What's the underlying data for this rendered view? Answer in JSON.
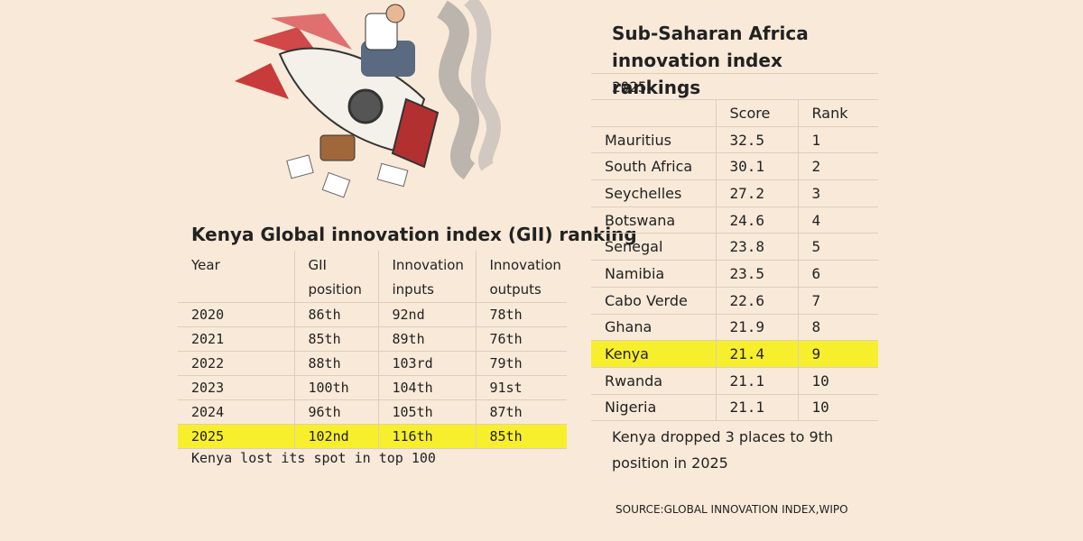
{
  "gii": {
    "title": "Kenya Global innovation index (GII) ranking",
    "header": [
      "Year",
      "GII position",
      "Innovation inputs",
      "Innovation outputs"
    ],
    "rows": [
      [
        "2020",
        "86th",
        "92nd",
        "78th"
      ],
      [
        "2021",
        "85th",
        "89th",
        "76th"
      ],
      [
        "2022",
        "88th",
        "103rd",
        "79th"
      ],
      [
        "2023",
        "100th",
        "104th",
        "91st"
      ],
      [
        "2024",
        "96th",
        "105th",
        "87th"
      ],
      [
        "2025",
        "102nd",
        "116th",
        "85th"
      ]
    ],
    "note": "Kenya lost its spot in top 100"
  },
  "ssa": {
    "title": "Sub-Saharan Africa innovation index rankings",
    "subtitle": "2025",
    "header": [
      "Score",
      "Rank"
    ],
    "rows": [
      [
        "Mauritius",
        32.5,
        1
      ],
      [
        "South Africa",
        30.1,
        2
      ],
      [
        "Seychelles",
        27.2,
        3
      ],
      [
        "Botswana",
        24.6,
        4
      ],
      [
        "Senegal",
        23.8,
        5
      ],
      [
        "Namibia",
        23.5,
        6
      ],
      [
        "Cabo Verde",
        22.6,
        7
      ],
      [
        "Ghana",
        21.9,
        8
      ],
      [
        "Kenya",
        21.4,
        9
      ],
      [
        "Rwanda",
        21.1,
        10
      ],
      [
        "Nigeria",
        21.1,
        10
      ]
    ],
    "note": "Kenya dropped 3 places to 9th position in 2025"
  },
  "source": "SOURCE:GLOBAL INNOVATION INDEX,WIPO"
}
